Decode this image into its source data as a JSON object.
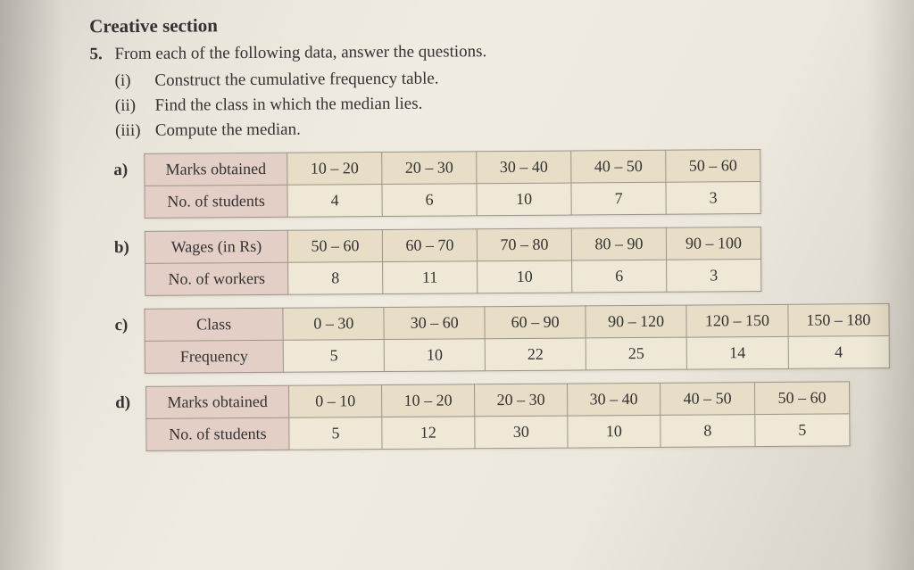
{
  "heading": "Creative section",
  "question": {
    "number": "5.",
    "prompt": "From each of the following data, answer the questions.",
    "parts": [
      {
        "mark": "(i)",
        "text": "Construct the cumulative frequency table."
      },
      {
        "mark": "(ii)",
        "text": "Find the class in which the median lies."
      },
      {
        "mark": "(iii)",
        "text": "Compute the median."
      }
    ]
  },
  "tables": {
    "a": {
      "label": "a)",
      "header_title": "Marks obtained",
      "row_title": "No. of students",
      "cols": [
        "10 – 20",
        "20 – 30",
        "30 – 40",
        "40 – 50",
        "50 – 60"
      ],
      "vals": [
        "4",
        "6",
        "10",
        "7",
        "3"
      ]
    },
    "b": {
      "label": "b)",
      "header_title": "Wages (in Rs)",
      "row_title": "No. of workers",
      "cols": [
        "50 – 60",
        "60 – 70",
        "70 – 80",
        "80 – 90",
        "90 – 100"
      ],
      "vals": [
        "8",
        "11",
        "10",
        "6",
        "3"
      ]
    },
    "c": {
      "label": "c)",
      "header_title": "Class",
      "row_title": "Frequency",
      "cols": [
        "0 – 30",
        "30 – 60",
        "60 – 90",
        "90 – 120",
        "120 – 150",
        "150 – 180"
      ],
      "vals": [
        "5",
        "10",
        "22",
        "25",
        "14",
        "4"
      ]
    },
    "d": {
      "label": "d)",
      "header_title": "Marks obtained",
      "row_title": "No. of students",
      "cols": [
        "0 – 10",
        "10 – 20",
        "20 – 30",
        "30 – 40",
        "40 – 50",
        "50 – 60"
      ],
      "vals": [
        "5",
        "12",
        "30",
        "10",
        "8",
        "5"
      ]
    }
  }
}
